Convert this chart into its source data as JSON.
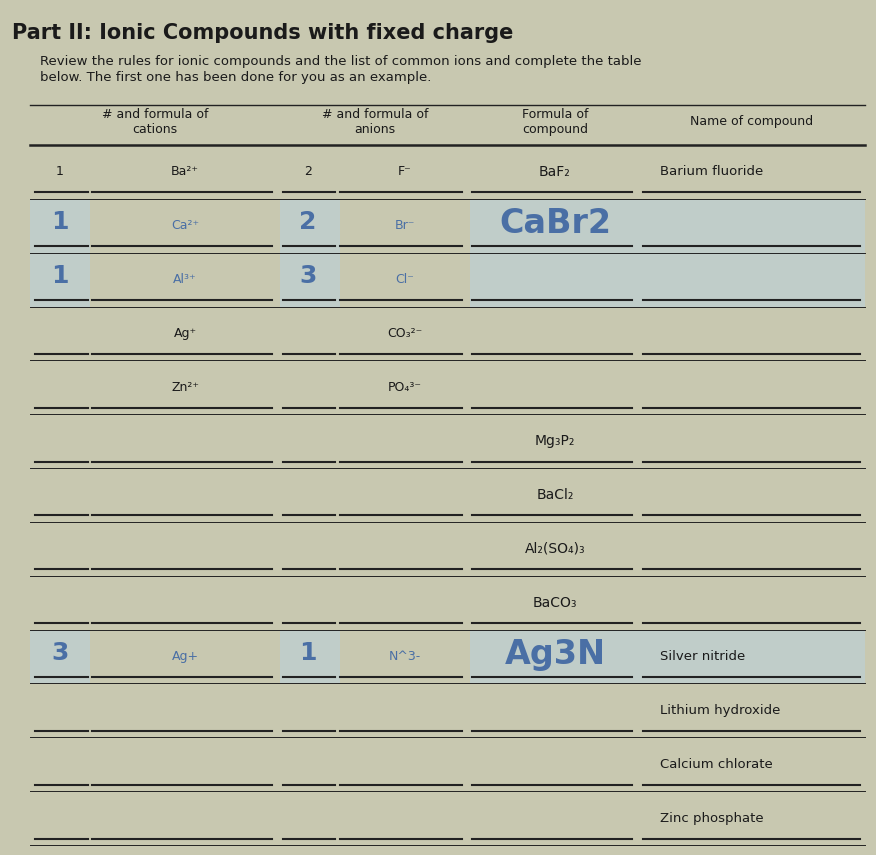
{
  "title": "Part II: Ionic Compounds with fixed charge",
  "subtitle1": "Review the rules for ionic compounds and the list of common ions and complete the table",
  "subtitle2": "below. The first one has been done for you as an example.",
  "col_headers": [
    "# and formula of\ncations",
    "# and formula of\nanions",
    "Formula of\ncompound",
    "Name of compound"
  ],
  "bg_color": "#c8c8b0",
  "text_color": "#1a1a1a",
  "blue_color": "#4a6fa5",
  "line_color": "#222222",
  "rows": [
    {
      "num_cat": "1",
      "cat": "Ba²⁺",
      "num_an": "2",
      "an": "F⁻",
      "formula": "BaF₂",
      "name": "Barium fluoride",
      "blue": false,
      "formula_large": false,
      "num_large": false
    },
    {
      "num_cat": "1",
      "cat": "Ca²⁺",
      "num_an": "2",
      "an": "Br⁻",
      "formula": "CaBr2",
      "name": "",
      "blue": true,
      "formula_large": true,
      "num_large": true
    },
    {
      "num_cat": "1",
      "cat": "Al³⁺",
      "num_an": "3",
      "an": "Cl⁻",
      "formula": "",
      "name": "",
      "blue": true,
      "formula_large": false,
      "num_large": true
    },
    {
      "num_cat": "",
      "cat": "Ag⁺",
      "num_an": "",
      "an": "CO₃²⁻",
      "formula": "",
      "name": "",
      "blue": false,
      "formula_large": false,
      "num_large": false
    },
    {
      "num_cat": "",
      "cat": "Zn²⁺",
      "num_an": "",
      "an": "PO₄³⁻",
      "formula": "",
      "name": "",
      "blue": false,
      "formula_large": false,
      "num_large": false
    },
    {
      "num_cat": "",
      "cat": "",
      "num_an": "",
      "an": "",
      "formula": "Mg₃P₂",
      "name": "",
      "blue": false,
      "formula_large": false,
      "num_large": false
    },
    {
      "num_cat": "",
      "cat": "",
      "num_an": "",
      "an": "",
      "formula": "BaCl₂",
      "name": "",
      "blue": false,
      "formula_large": false,
      "num_large": false
    },
    {
      "num_cat": "",
      "cat": "",
      "num_an": "",
      "an": "",
      "formula": "Al₂(SO₄)₃",
      "name": "",
      "blue": false,
      "formula_large": false,
      "num_large": false
    },
    {
      "num_cat": "",
      "cat": "",
      "num_an": "",
      "an": "",
      "formula": "BaCO₃",
      "name": "",
      "blue": false,
      "formula_large": false,
      "num_large": false
    },
    {
      "num_cat": "3",
      "cat": "Ag+",
      "num_an": "1",
      "an": "N^3-",
      "formula": "Ag3N",
      "name": "Silver nitride",
      "blue": true,
      "formula_large": true,
      "num_large": true
    },
    {
      "num_cat": "",
      "cat": "",
      "num_an": "",
      "an": "",
      "formula": "",
      "name": "Lithium hydroxide",
      "blue": false,
      "formula_large": false,
      "num_large": false
    },
    {
      "num_cat": "",
      "cat": "",
      "num_an": "",
      "an": "",
      "formula": "",
      "name": "Calcium chlorate",
      "blue": false,
      "formula_large": false,
      "num_large": false
    },
    {
      "num_cat": "",
      "cat": "",
      "num_an": "",
      "an": "",
      "formula": "",
      "name": "Zinc phosphate",
      "blue": false,
      "formula_large": false,
      "num_large": false
    }
  ]
}
